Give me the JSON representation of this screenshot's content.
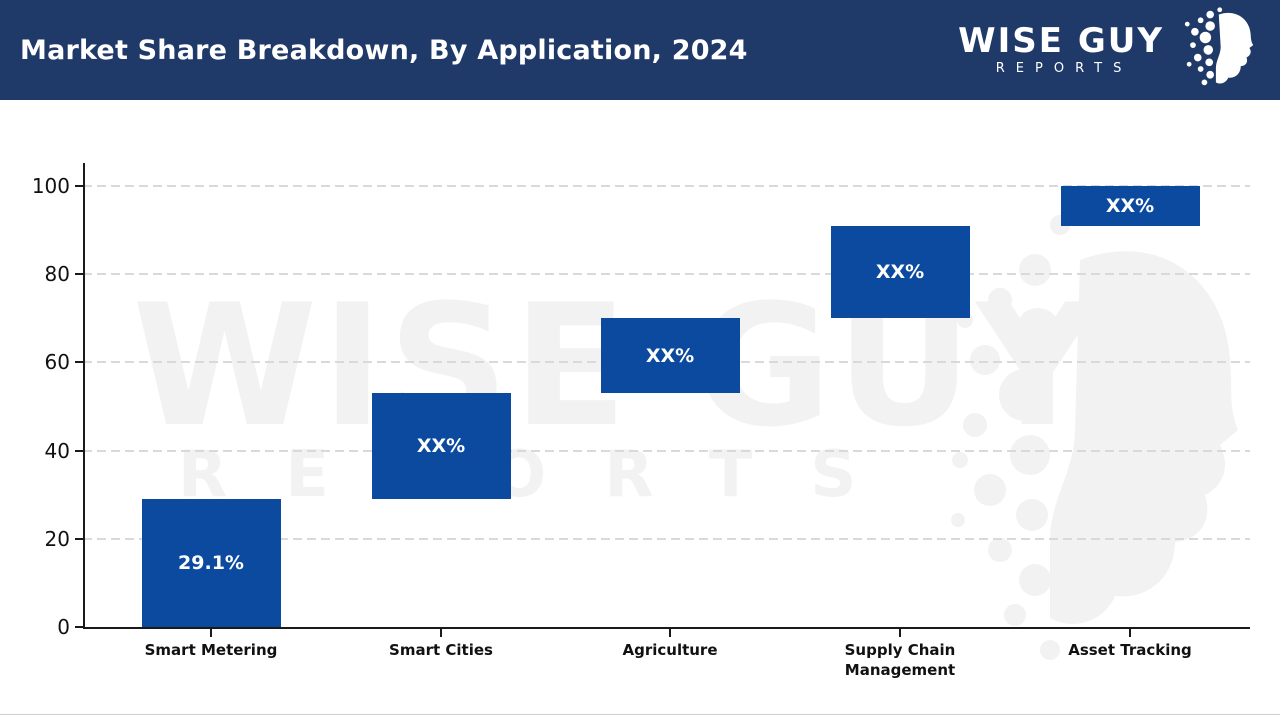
{
  "header": {
    "title": "Market Share Breakdown, By Application, 2024",
    "bg_color": "#1f3a68",
    "logo": {
      "line1": "WISE GUY",
      "line2": "REPORTS"
    }
  },
  "watermark": {
    "line1": "WISE GUY",
    "line2": "REPORTS"
  },
  "chart_data": {
    "type": "bar",
    "subtype": "floating-waterfall",
    "title": "Market Share Breakdown, By Application, 2024",
    "categories": [
      "Smart Metering",
      "Smart Cities",
      "Agriculture",
      "Supply Chain Management",
      "Asset Tracking"
    ],
    "segments": [
      {
        "category": "Smart Metering",
        "start": 0,
        "end": 29.1,
        "label": "29.1%"
      },
      {
        "category": "Smart Cities",
        "start": 29.1,
        "end": 53,
        "label": "XX%"
      },
      {
        "category": "Agriculture",
        "start": 53,
        "end": 70,
        "label": "XX%"
      },
      {
        "category": "Supply Chain Management",
        "start": 70,
        "end": 91,
        "label": "XX%"
      },
      {
        "category": "Asset Tracking",
        "start": 91,
        "end": 100,
        "label": "XX%"
      }
    ],
    "y_ticks": [
      0,
      20,
      40,
      60,
      80,
      100
    ],
    "ylim": [
      0,
      100
    ],
    "xlabel": "",
    "ylabel": "",
    "legend": "none",
    "grid": "horizontal-dashed",
    "colors": {
      "bar": "#0b4a9f",
      "bar_label": "#ffffff",
      "grid": "#d9d9d9",
      "axis": "#1a1a1a",
      "tick_label": "#111111",
      "watermark": "#f2f2f2"
    }
  }
}
